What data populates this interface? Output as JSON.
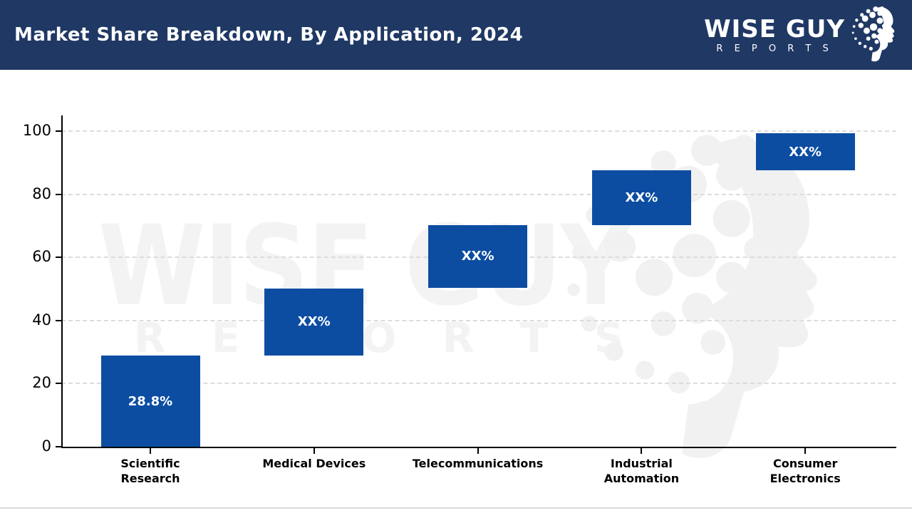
{
  "header": {
    "title": "Market Share Breakdown, By Application, 2024",
    "logo": {
      "line1": "WISE GUY",
      "line2": "R E P O R T S"
    }
  },
  "watermark": {
    "line1": "WISE GUY",
    "line2": "R E P O R T S"
  },
  "colors": {
    "header_bg": "#1f3864",
    "bar": "#0c4da2",
    "bar_label": "#ffffff",
    "grid": "#dcdcdc",
    "axis": "#000000",
    "watermark": "#f3f3f3"
  },
  "chart_data": {
    "type": "bar",
    "subtype": "waterfall",
    "title": "Market Share Breakdown, By Application, 2024",
    "categories": [
      "Scientific\nResearch",
      "Medical Devices",
      "Telecommunications",
      "Industrial\nAutomation",
      "Consumer\nElectronics"
    ],
    "segments": [
      {
        "label": "28.8%",
        "start": 0,
        "end": 28.8
      },
      {
        "label": "XX%",
        "start": 28.9,
        "end": 50.2
      },
      {
        "label": "XX%",
        "start": 50.4,
        "end": 70.3
      },
      {
        "label": "XX%",
        "start": 70.3,
        "end": 87.6
      },
      {
        "label": "XX%",
        "start": 87.6,
        "end": 99.3
      }
    ],
    "xlabel": "",
    "ylabel": "",
    "ylim": [
      0,
      105
    ],
    "yticks": [
      0,
      20,
      40,
      60,
      80,
      100
    ],
    "grid": "horizontal-dashed",
    "legend": "none",
    "bar_color": "#0c4da2",
    "label_color": "#ffffff"
  }
}
